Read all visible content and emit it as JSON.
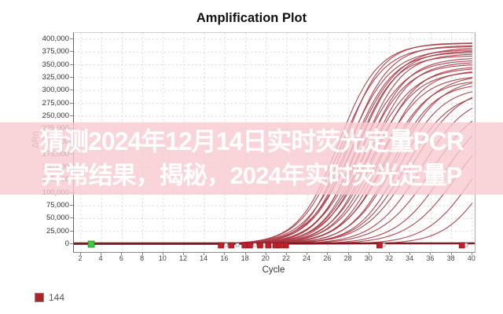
{
  "title": "Amplification Plot",
  "overlay": {
    "line1": "猜测2024年12月14日实时荧光定量PCR",
    "line2": "异常结果，揭秘，2024年实时荧光定量P",
    "band_color": "#f7c9d0",
    "text_color": "#ffffff"
  },
  "legend": {
    "label": "144",
    "color": "#b22222"
  },
  "chart_data": {
    "type": "line",
    "title": "Amplification Plot",
    "xlabel": "Cycle",
    "ylabel": "ΔRn",
    "xlim": [
      1,
      40.9
    ],
    "ylim": [
      0,
      400000
    ],
    "grid": true,
    "xticks": [
      2,
      4,
      6,
      8,
      10,
      12,
      14,
      16,
      18,
      20,
      22,
      24,
      26,
      28,
      30,
      32,
      34,
      36,
      38,
      40
    ],
    "yticks": [
      0,
      25000,
      50000,
      75000,
      100000,
      125000,
      150000,
      175000,
      200000,
      225000,
      250000,
      275000,
      300000,
      325000,
      350000,
      375000,
      400000
    ],
    "curve_color": "#a93440",
    "baseline": {
      "value": 0,
      "color": "#7e1b24"
    },
    "curves": [
      {
        "midpoint": 27.0,
        "plateau": 392000,
        "k": 0.52
      },
      {
        "midpoint": 27.3,
        "plateau": 386000,
        "k": 0.5
      },
      {
        "midpoint": 27.6,
        "plateau": 393000,
        "k": 0.55
      },
      {
        "midpoint": 27.9,
        "plateau": 380000,
        "k": 0.48
      },
      {
        "midpoint": 28.1,
        "plateau": 388000,
        "k": 0.52
      },
      {
        "midpoint": 28.3,
        "plateau": 375000,
        "k": 0.5
      },
      {
        "midpoint": 28.5,
        "plateau": 384000,
        "k": 0.46
      },
      {
        "midpoint": 28.7,
        "plateau": 368000,
        "k": 0.53
      },
      {
        "midpoint": 28.9,
        "plateau": 378000,
        "k": 0.5
      },
      {
        "midpoint": 29.1,
        "plateau": 360000,
        "k": 0.47
      },
      {
        "midpoint": 29.3,
        "plateau": 372000,
        "k": 0.52
      },
      {
        "midpoint": 29.5,
        "plateau": 352000,
        "k": 0.49
      },
      {
        "midpoint": 29.7,
        "plateau": 364000,
        "k": 0.51
      },
      {
        "midpoint": 29.9,
        "plateau": 345000,
        "k": 0.46
      },
      {
        "midpoint": 30.1,
        "plateau": 356000,
        "k": 0.52
      },
      {
        "midpoint": 30.3,
        "plateau": 338000,
        "k": 0.48
      },
      {
        "midpoint": 30.6,
        "plateau": 348000,
        "k": 0.5
      },
      {
        "midpoint": 30.9,
        "plateau": 330000,
        "k": 0.47
      },
      {
        "midpoint": 31.2,
        "plateau": 340000,
        "k": 0.51
      },
      {
        "midpoint": 31.5,
        "plateau": 322000,
        "k": 0.48
      },
      {
        "midpoint": 31.8,
        "plateau": 332000,
        "k": 0.45
      },
      {
        "midpoint": 32.2,
        "plateau": 315000,
        "k": 0.49
      },
      {
        "midpoint": 32.6,
        "plateau": 325000,
        "k": 0.46
      },
      {
        "midpoint": 33.0,
        "plateau": 308000,
        "k": 0.48
      },
      {
        "midpoint": 33.5,
        "plateau": 300000,
        "k": 0.45
      },
      {
        "midpoint": 34.2,
        "plateau": 310000,
        "k": 0.43
      },
      {
        "midpoint": 35.0,
        "plateau": 295000,
        "k": 0.44
      },
      {
        "midpoint": 36.0,
        "plateau": 285000,
        "k": 0.42
      },
      {
        "midpoint": 37.2,
        "plateau": 275000,
        "k": 0.43
      },
      {
        "midpoint": 38.5,
        "plateau": 265000,
        "k": 0.42
      },
      {
        "midpoint": 40.0,
        "plateau": 255000,
        "k": 0.45
      },
      {
        "midpoint": 41.5,
        "plateau": 245000,
        "k": 0.48
      }
    ],
    "markers": {
      "red_cycles": [
        15.6,
        16.6,
        17.9,
        18.4,
        19.4,
        20.2,
        20.9,
        21.3,
        21.9,
        31.0,
        39.0
      ],
      "white_cycles": [
        16.1,
        17.2,
        18.9,
        19.8,
        20.5,
        21.6,
        31.4,
        39.4
      ],
      "green_cycles": [
        3.0
      ],
      "red_color": "#c01f2a",
      "green_color": "#3dcc3d"
    }
  }
}
